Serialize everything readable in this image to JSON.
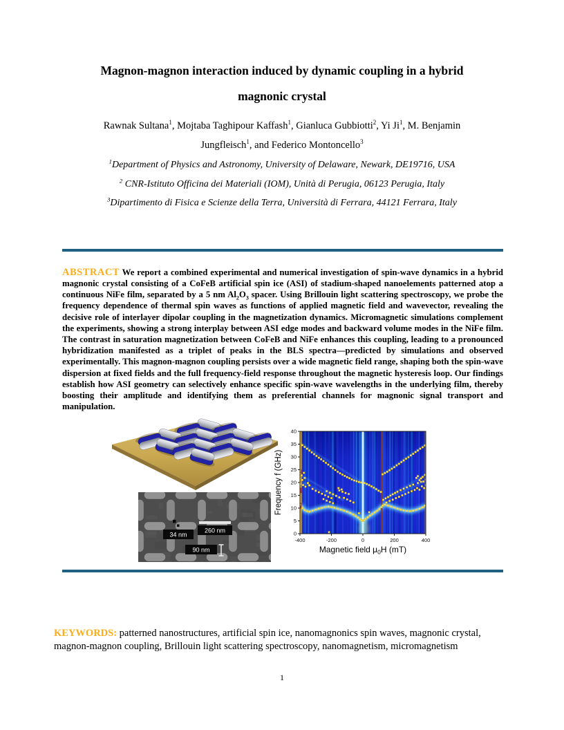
{
  "document": {
    "title_lines": [
      "Magnon-magnon interaction induced by dynamic coupling in a hybrid",
      "magnonic crystal"
    ],
    "page_number": "1"
  },
  "authors": {
    "line1": [
      {
        "t": "Rawnak Sultana"
      },
      {
        "t": "1",
        "sup": true
      },
      {
        "t": ", Mojtaba Taghipour Kaffash"
      },
      {
        "t": "1",
        "sup": true
      },
      {
        "t": ", Gianluca Gubbiotti"
      },
      {
        "t": "2",
        "sup": true
      },
      {
        "t": ", Yi Ji"
      },
      {
        "t": "1",
        "sup": true
      },
      {
        "t": ", M. Benjamin"
      }
    ],
    "line2": [
      {
        "t": "Jungfleisch"
      },
      {
        "t": "1",
        "sup": true
      },
      {
        "t": ", and Federico Montoncello"
      },
      {
        "t": "3",
        "sup": true
      }
    ]
  },
  "affiliations": {
    "line1": [
      {
        "t": "1",
        "sup": true
      },
      {
        "t": "Department of Physics and Astronomy, University of Delaware, Newark, DE19716, USA"
      }
    ],
    "line2": [
      {
        "t": "2",
        "sup": true
      },
      {
        "t": " CNR-Istituto Officina dei Materiali (IOM), Unità di Perugia, 06123 Perugia, Italy"
      }
    ],
    "line3": [
      {
        "t": "3",
        "sup": true
      },
      {
        "t": "Dipartimento di Fisica e Scienze della Terra, Università di Ferrara, 44121 Ferrara, Italy"
      }
    ]
  },
  "abstract": {
    "heading": "ABSTRACT",
    "segments": [
      {
        "t": "  We report a combined experimental and numerical investigation of spin-wave dynamics in a hybrid magnonic crystal consisting of a CoFeB artificial spin ice (ASI) of stadium-shaped nanoelements patterned atop a continuous NiFe film, separated by a 5 nm Al"
      },
      {
        "t": "2",
        "sub": true
      },
      {
        "t": "O"
      },
      {
        "t": "3",
        "sub": true
      },
      {
        "t": " spacer. Using Brillouin light scattering spectroscopy, we probe the frequency dependence of thermal spin waves as functions of applied magnetic field and wavevector, revealing the decisive role of interlayer dipolar coupling in the magnetization dynamics. Micromagnetic simulations complement the experiments, showing a strong interplay between ASI edge modes and backward volume modes in the NiFe film. The contrast in saturation magnetization between CoFeB and NiFe enhances this coupling, leading to a pronounced hybridization manifested as a triplet of peaks in the BLS spectra—predicted by simulations and observed experimentally. This magnon-magnon coupling persists over a wide magnetic field range, shaping both the spin-wave dispersion at fixed fields and the full frequency-field response throughout the magnetic hysteresis loop. Our findings establish how ASI geometry can selectively enhance specific spin-wave wavelengths in the underlying film, thereby boosting their amplitude and identifying them as preferential channels for magnonic signal transport and manipulation."
      }
    ]
  },
  "keywords": {
    "heading": "KEYWORDS:",
    "text": " patterned nanostructures, artificial spin ice, nanomagnonics spin waves, magnonic crystal, magnon-magnon coupling, Brillouin light scattering spectroscopy, nanomagnetism, micromagnetism"
  },
  "figure": {
    "sem_labels": {
      "gap": "34 nm",
      "length": "260 nm",
      "width": "90 nm"
    },
    "panels": [
      "3d-schematic-asi-on-film",
      "sem-micrograph",
      "bls-field-dispersion-map"
    ]
  },
  "chart_data": {
    "type": "heatmap",
    "description": "BLS intensity colormap (blue-cyan) vs field and frequency with yellow experimental peak positions",
    "ylabel": "Frequency f (GHz)",
    "xlabel_prefix": "Magnetic field μ",
    "xlabel_sub": "0",
    "xlabel_suffix": "H (mT)",
    "xlim": [
      -400,
      400
    ],
    "ylim": [
      0,
      40
    ],
    "xticks": [
      -400,
      -200,
      0,
      200,
      400
    ],
    "yticks": [
      0,
      5,
      10,
      15,
      20,
      25,
      30,
      35,
      40
    ],
    "vertical_features": [
      {
        "x": 0,
        "type": "bright-line"
      },
      {
        "x": 120,
        "type": "dark-red-line"
      },
      {
        "x": -400,
        "type": "orange-edge-stripe"
      }
    ],
    "film_mode_band": [
      [
        -400,
        11.3
      ],
      [
        -370,
        9.2
      ],
      [
        -340,
        8.6
      ],
      [
        -300,
        9.4
      ],
      [
        -260,
        10.1
      ],
      [
        -220,
        10.6
      ],
      [
        -180,
        10.1
      ],
      [
        -140,
        9.4
      ],
      [
        -100,
        8.6
      ],
      [
        -60,
        7.5
      ],
      [
        -30,
        6.3
      ],
      [
        -10,
        5.2
      ],
      [
        0,
        5
      ],
      [
        10,
        5.3
      ],
      [
        30,
        6.4
      ],
      [
        60,
        7.7
      ],
      [
        90,
        8.9
      ],
      [
        118,
        10.4
      ],
      [
        125,
        11.0
      ],
      [
        140,
        11.4
      ],
      [
        180,
        10.6
      ],
      [
        220,
        9.8
      ],
      [
        260,
        9.1
      ],
      [
        300,
        8.8
      ],
      [
        340,
        9.3
      ],
      [
        380,
        10.3
      ],
      [
        400,
        11.0
      ]
    ],
    "faint_branch_lines": [
      [
        -400,
        35.5,
        -10,
        20.2
      ],
      [
        125,
        23.2,
        400,
        35.0
      ],
      [
        10,
        19.8,
        120,
        16.2
      ],
      [
        -400,
        23.0,
        -120,
        13.0
      ],
      [
        120,
        13.0,
        400,
        23.0
      ],
      [
        -400,
        20.5,
        -200,
        15.0
      ],
      [
        200,
        15.0,
        400,
        20.5
      ]
    ],
    "series": [
      {
        "name": "asi-mode-descending-left",
        "points": [
          [
            -400,
            35.3
          ],
          [
            -385,
            34.6
          ],
          [
            -370,
            33.9
          ],
          [
            -355,
            33.2
          ],
          [
            -340,
            32.5
          ],
          [
            -325,
            31.8
          ],
          [
            -310,
            31.1
          ],
          [
            -295,
            30.4
          ],
          [
            -280,
            29.7
          ],
          [
            -265,
            29.1
          ],
          [
            -250,
            28.4
          ],
          [
            -235,
            27.7
          ],
          [
            -220,
            27.0
          ],
          [
            -205,
            26.3
          ],
          [
            -190,
            25.6
          ],
          [
            -175,
            24.9
          ],
          [
            -160,
            24.2
          ],
          [
            -145,
            23.6
          ],
          [
            -130,
            23.1
          ],
          [
            -115,
            22.6
          ],
          [
            -100,
            22.1
          ],
          [
            -85,
            21.7
          ],
          [
            -70,
            21.2
          ],
          [
            -55,
            20.8
          ],
          [
            -40,
            20.5
          ],
          [
            -25,
            20.2
          ],
          [
            -10,
            20.0
          ]
        ]
      },
      {
        "name": "asi-mode-0-to-120",
        "points": [
          [
            10,
            19.8
          ],
          [
            25,
            19.4
          ],
          [
            40,
            19.0
          ],
          [
            55,
            18.5
          ],
          [
            70,
            18.0
          ],
          [
            85,
            17.4
          ],
          [
            100,
            16.8
          ],
          [
            115,
            16.3
          ]
        ]
      },
      {
        "name": "asi-mode-rising-right",
        "points": [
          [
            125,
            23.2
          ],
          [
            140,
            23.7
          ],
          [
            155,
            24.2
          ],
          [
            170,
            24.8
          ],
          [
            185,
            25.4
          ],
          [
            200,
            26.0
          ],
          [
            215,
            26.7
          ],
          [
            230,
            27.3
          ],
          [
            245,
            28.0
          ],
          [
            260,
            28.6
          ],
          [
            275,
            29.3
          ],
          [
            290,
            29.9
          ],
          [
            305,
            30.6
          ],
          [
            320,
            31.2
          ],
          [
            335,
            31.9
          ],
          [
            350,
            32.5
          ],
          [
            365,
            33.2
          ],
          [
            380,
            33.8
          ],
          [
            395,
            34.5
          ]
        ]
      },
      {
        "name": "left-edge-cluster",
        "points": [
          [
            -400,
            24.5
          ],
          [
            -400,
            23.5
          ],
          [
            -390,
            22.8
          ],
          [
            -400,
            21.5
          ],
          [
            -385,
            21.0
          ],
          [
            -370,
            21.8
          ],
          [
            -395,
            19.5
          ],
          [
            -380,
            19.0
          ],
          [
            -365,
            18.4
          ],
          [
            -350,
            19.8
          ],
          [
            -340,
            18.9
          ],
          [
            -375,
            23.8
          ]
        ]
      },
      {
        "name": "right-edge-cluster",
        "points": [
          [
            395,
            23.0
          ],
          [
            380,
            22.2
          ],
          [
            400,
            21.2
          ],
          [
            370,
            21.6
          ],
          [
            385,
            20.4
          ],
          [
            360,
            20.9
          ],
          [
            350,
            22.5
          ],
          [
            340,
            21.8
          ],
          [
            400,
            19.0
          ],
          [
            390,
            17.8
          ],
          [
            375,
            18.5
          ],
          [
            360,
            17.2
          ],
          [
            345,
            17.8
          ]
        ]
      },
      {
        "name": "mid-modes-left",
        "points": [
          [
            -320,
            17.5
          ],
          [
            -300,
            16.8
          ],
          [
            -280,
            16.2
          ],
          [
            -260,
            15.6
          ],
          [
            -240,
            15.0
          ],
          [
            -220,
            14.4
          ],
          [
            -200,
            13.9
          ],
          [
            -230,
            16.6
          ],
          [
            -210,
            16.0
          ],
          [
            -190,
            15.4
          ],
          [
            -170,
            14.8
          ],
          [
            -150,
            14.2
          ],
          [
            -250,
            13.5
          ],
          [
            -230,
            12.9
          ],
          [
            -210,
            12.4
          ],
          [
            -190,
            11.9
          ],
          [
            -150,
            16.9
          ],
          [
            -130,
            16.4
          ],
          [
            -110,
            15.9
          ],
          [
            -90,
            15.5
          ],
          [
            -120,
            14.0
          ],
          [
            -100,
            13.4
          ],
          [
            -80,
            12.8
          ],
          [
            -60,
            12.2
          ],
          [
            -155,
            17.8
          ],
          [
            -135,
            17.3
          ]
        ]
      },
      {
        "name": "mid-modes-right",
        "points": [
          [
            130,
            13.2
          ],
          [
            145,
            13.8
          ],
          [
            160,
            14.3
          ],
          [
            175,
            14.9
          ],
          [
            190,
            15.4
          ],
          [
            205,
            15.9
          ],
          [
            220,
            16.4
          ],
          [
            150,
            12.2
          ],
          [
            170,
            12.8
          ],
          [
            190,
            13.3
          ],
          [
            210,
            13.9
          ],
          [
            230,
            14.4
          ],
          [
            250,
            15.0
          ],
          [
            270,
            15.5
          ],
          [
            240,
            17.0
          ],
          [
            260,
            17.6
          ],
          [
            280,
            18.1
          ],
          [
            300,
            18.7
          ],
          [
            320,
            19.2
          ],
          [
            290,
            16.1
          ],
          [
            310,
            16.6
          ],
          [
            330,
            17.1
          ],
          [
            350,
            19.8
          ],
          [
            370,
            20.3
          ]
        ]
      },
      {
        "name": "film-mode",
        "points": [
          [
            -400,
            11.3
          ],
          [
            -385,
            10.0
          ],
          [
            -370,
            9.2
          ],
          [
            -355,
            8.8
          ],
          [
            -340,
            8.6
          ],
          [
            -320,
            9.0
          ],
          [
            -300,
            9.4
          ],
          [
            -280,
            9.8
          ],
          [
            -260,
            10.1
          ],
          [
            -240,
            10.4
          ],
          [
            -220,
            10.6
          ],
          [
            -200,
            10.4
          ],
          [
            -180,
            10.1
          ],
          [
            -160,
            9.8
          ],
          [
            -140,
            9.4
          ],
          [
            -120,
            9.0
          ],
          [
            -100,
            8.6
          ],
          [
            -80,
            8.1
          ],
          [
            -60,
            7.5
          ],
          [
            -45,
            6.9
          ],
          [
            -30,
            6.3
          ],
          [
            -18,
            5.7
          ],
          [
            -8,
            5.2
          ],
          [
            0,
            5.0
          ],
          [
            8,
            5.3
          ],
          [
            18,
            5.8
          ],
          [
            30,
            6.4
          ],
          [
            45,
            7.1
          ],
          [
            60,
            7.7
          ],
          [
            75,
            8.3
          ],
          [
            90,
            8.9
          ],
          [
            105,
            9.6
          ],
          [
            118,
            10.4
          ],
          [
            125,
            11.0
          ],
          [
            140,
            11.4
          ],
          [
            160,
            11.0
          ],
          [
            180,
            10.6
          ],
          [
            200,
            10.2
          ],
          [
            220,
            9.8
          ],
          [
            240,
            9.4
          ],
          [
            260,
            9.1
          ],
          [
            280,
            8.9
          ],
          [
            300,
            8.8
          ],
          [
            320,
            9.0
          ],
          [
            340,
            9.3
          ],
          [
            360,
            9.7
          ],
          [
            380,
            10.3
          ],
          [
            395,
            11.0
          ]
        ]
      },
      {
        "name": "isolated-points",
        "points": [
          [
            -215,
            0.6
          ],
          [
            -25,
            8.0
          ],
          [
            40,
            8.4
          ]
        ]
      }
    ]
  },
  "colors": {
    "rule": "#1F6080",
    "accent": "#FBAD18",
    "plot_bg": "#1524c4",
    "scatter": "#ffe44d",
    "gold_top": "#c9a850",
    "gold_side": "#8f7336",
    "silver": "#c9ccd2",
    "blue_base": "#2222a8",
    "sem_bg": "#4d4d4d",
    "sem_bar": "#939393"
  }
}
